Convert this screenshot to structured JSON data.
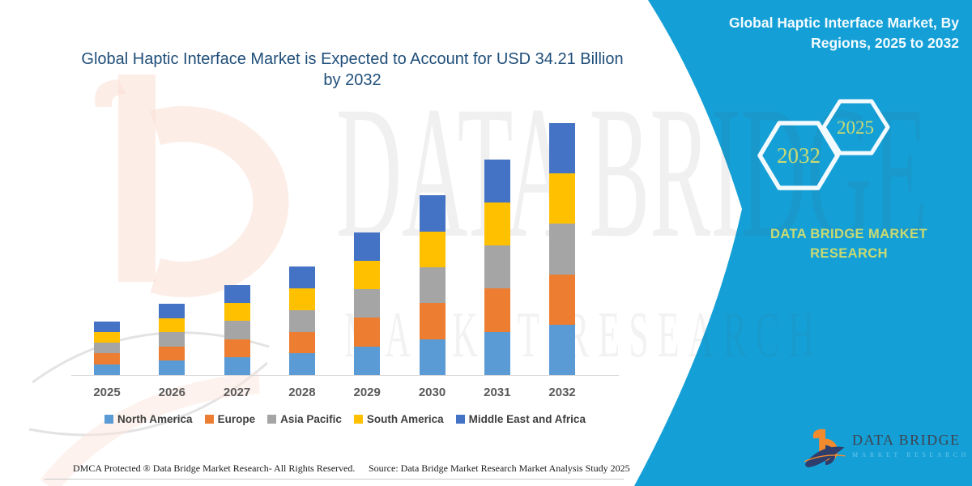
{
  "main": {
    "title_line1": "Global Haptic Interface Market is Expected to Account for USD 34.21 Billion",
    "title_line2": "by 2032"
  },
  "chart_data": {
    "type": "bar",
    "stacked": true,
    "title": "Global Haptic Interface Market is Expected to Account for USD 34.21 Billion by 2032",
    "xlabel": "",
    "ylabel": "USD Billion",
    "yaxis_visible": false,
    "grid": false,
    "legend_position": "bottom",
    "categories": [
      "2025",
      "2026",
      "2027",
      "2028",
      "2029",
      "2030",
      "2031",
      "2032"
    ],
    "totals": [
      7.3,
      9.7,
      12.2,
      14.7,
      19.4,
      24.4,
      29.3,
      34.21
    ],
    "series": [
      {
        "name": "North America",
        "color": "#5B9BD5",
        "values": [
          1.46,
          1.94,
          2.44,
          2.94,
          3.88,
          4.88,
          5.86,
          6.85
        ]
      },
      {
        "name": "Europe",
        "color": "#ED7D31",
        "values": [
          1.46,
          1.94,
          2.44,
          2.94,
          3.88,
          4.88,
          5.86,
          6.84
        ]
      },
      {
        "name": "Asia Pacific",
        "color": "#A5A5A5",
        "values": [
          1.46,
          1.94,
          2.44,
          2.94,
          3.88,
          4.88,
          5.86,
          6.84
        ]
      },
      {
        "name": "South America",
        "color": "#FFC000",
        "values": [
          1.46,
          1.94,
          2.44,
          2.94,
          3.88,
          4.88,
          5.86,
          6.84
        ]
      },
      {
        "name": "Middle East and Africa",
        "color": "#4472C4",
        "values": [
          1.46,
          1.94,
          2.44,
          2.94,
          3.88,
          4.88,
          5.86,
          6.84
        ]
      }
    ]
  },
  "watermark": {
    "line1": "DATA BRIDGE",
    "line2": "MARKET RESEARCH"
  },
  "side_panel": {
    "panel_color": "#14A0D7",
    "accent_color": "#C9DA73",
    "title_line1": "Global Haptic Interface Market, By",
    "title_line2": "Regions, 2025 to 2032",
    "hexagons": [
      {
        "label": "2032"
      },
      {
        "label": "2025"
      }
    ],
    "brand_line1": "DATA BRIDGE MARKET",
    "brand_line2": "RESEARCH"
  },
  "footer": {
    "dmca": "DMCA Protected ® Data Bridge Market Research- All Rights Reserved.",
    "source": "Source: Data Bridge Market Research Market Analysis Study 2025",
    "logo_title": "DATA BRIDGE",
    "logo_subtitle": "MARKET RESEARCH"
  }
}
